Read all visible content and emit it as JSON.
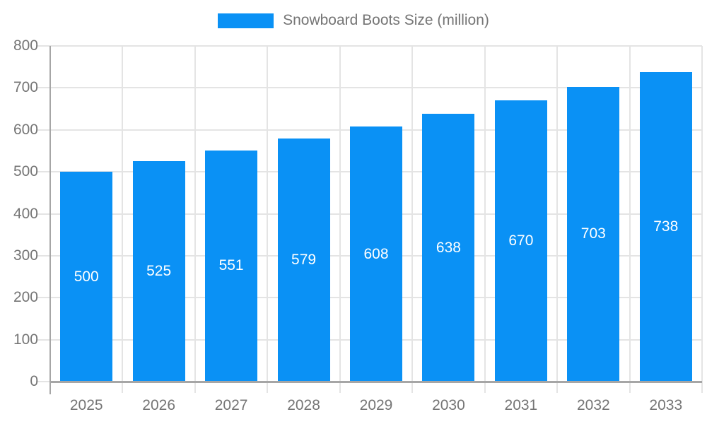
{
  "legend": {
    "label": "Snowboard Boots Size (million)"
  },
  "chart_data": {
    "type": "bar",
    "title": "",
    "xlabel": "",
    "ylabel": "",
    "categories": [
      "2025",
      "2026",
      "2027",
      "2028",
      "2029",
      "2030",
      "2031",
      "2032",
      "2033"
    ],
    "values": [
      500,
      525,
      551,
      579,
      608,
      638,
      670,
      703,
      738
    ],
    "series_name": "Snowboard Boots Size (million)",
    "ylim": [
      0,
      800
    ],
    "yticks": [
      0,
      100,
      200,
      300,
      400,
      500,
      600,
      700,
      800
    ],
    "grid": "horizontal and vertical gridlines on",
    "legend_position": "top-center",
    "value_labels": "white, centered inside bars",
    "colors": {
      "bar": "#0a91f5",
      "gridline": "#e4e4e4",
      "axis_line": "#a6a6a6",
      "axis_text": "#757575",
      "value_label": "#ffffff",
      "background": "#ffffff"
    }
  }
}
